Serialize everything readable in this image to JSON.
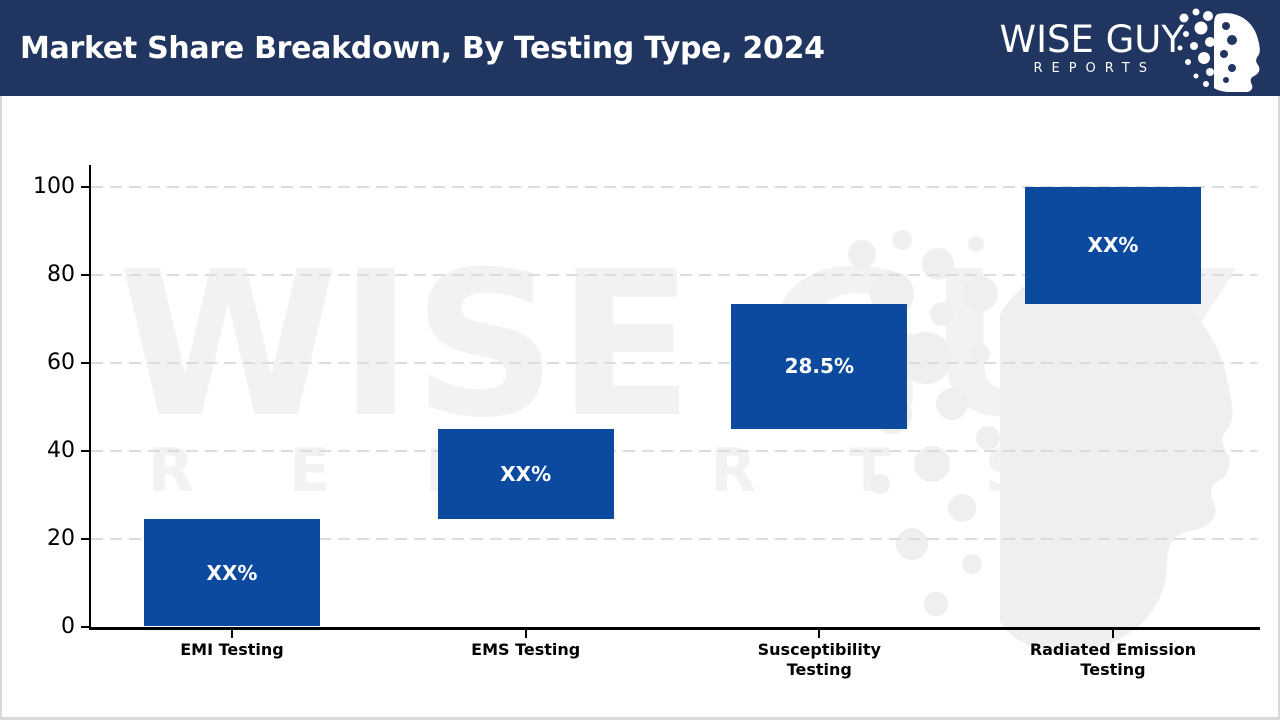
{
  "header": {
    "title": "Market Share Breakdown, By Testing Type, 2024",
    "logo": {
      "line1": "WISE GUY",
      "line2": "REPORTS"
    }
  },
  "watermark": {
    "line1": "WISE GUY",
    "line2": "REPORTS"
  },
  "colors": {
    "header_bg": "#20355F",
    "bar": "#0B4A9E",
    "gridline": "#DCDCDC",
    "watermark": "#F2F2F2",
    "watermark_head": "#EFEFEF",
    "axis": "#000000",
    "title_text": "#FFFFFF",
    "bar_label_text": "#FFFFFF"
  },
  "chart_data": {
    "type": "bar",
    "subtype": "waterfall-floating-bars",
    "title": "Market Share Breakdown, By Testing Type, 2024",
    "categories": [
      "EMI Testing",
      "EMS Testing",
      "Susceptibility Testing",
      "Radiated Emission Testing"
    ],
    "bars": [
      {
        "category": "EMI Testing",
        "category_lines": [
          "EMI Testing"
        ],
        "start": 0,
        "end": 24.5,
        "value": 24.5,
        "value_label": "XX%"
      },
      {
        "category": "EMS Testing",
        "category_lines": [
          "EMS Testing"
        ],
        "start": 24.5,
        "end": 44.9,
        "value": 20.4,
        "value_label": "XX%"
      },
      {
        "category": "Susceptibility Testing",
        "category_lines": [
          "Susceptibility",
          "Testing"
        ],
        "start": 44.9,
        "end": 73.4,
        "value": 28.5,
        "value_label": "28.5%"
      },
      {
        "category": "Radiated Emission Testing",
        "category_lines": [
          "Radiated Emission",
          "Testing"
        ],
        "start": 73.4,
        "end": 99.9,
        "value": 26.5,
        "value_label": "XX%"
      }
    ],
    "yticks": [
      0,
      20,
      40,
      60,
      80,
      100
    ],
    "ylim": [
      0,
      105
    ],
    "xlabel": "",
    "ylabel": "",
    "grid": "horizontal-dashed",
    "legend": "none"
  }
}
